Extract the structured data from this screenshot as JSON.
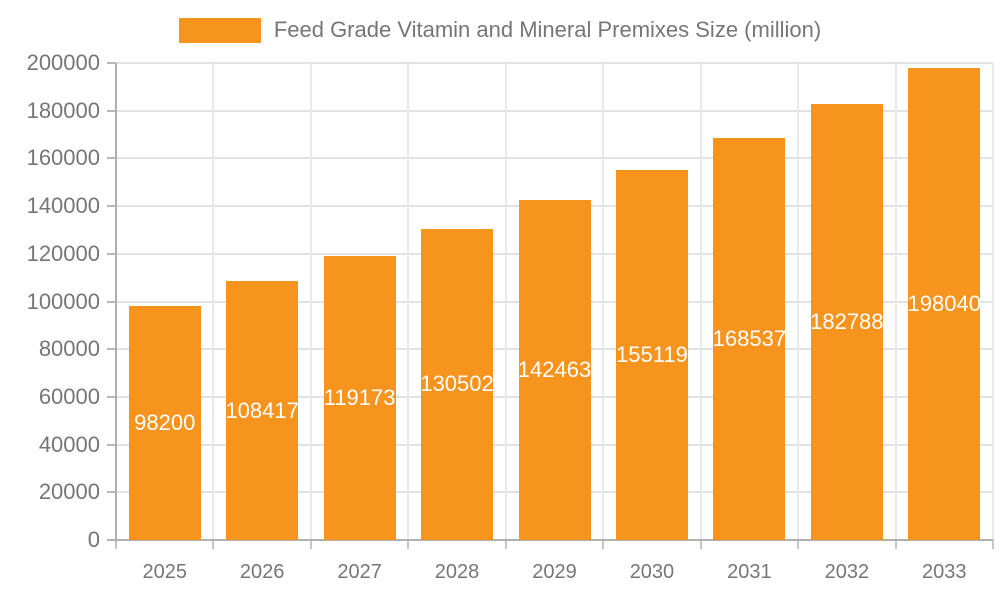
{
  "chart_data": {
    "type": "bar",
    "title": "Feed Grade Vitamin and Mineral Premixes Size (million)",
    "categories": [
      "2025",
      "2026",
      "2027",
      "2028",
      "2029",
      "2030",
      "2031",
      "2032",
      "2033"
    ],
    "values": [
      98200,
      108417,
      119173,
      130502,
      142463,
      155119,
      168537,
      182788,
      198040
    ],
    "xlabel": "",
    "ylabel": "",
    "ylim": [
      0,
      200000
    ],
    "ytick_step": 20000,
    "grid": true,
    "legend_position": "top-center",
    "value_labels": "inside-middle-white",
    "colors": {
      "bar": "#f7941e",
      "value_label": "#ffffff",
      "axis_text": "#767676",
      "axis_line": "#b0b0b0",
      "gridline_h": "#e2e2e2",
      "gridline_v": "#e9e9e9",
      "background": "#ffffff"
    }
  }
}
